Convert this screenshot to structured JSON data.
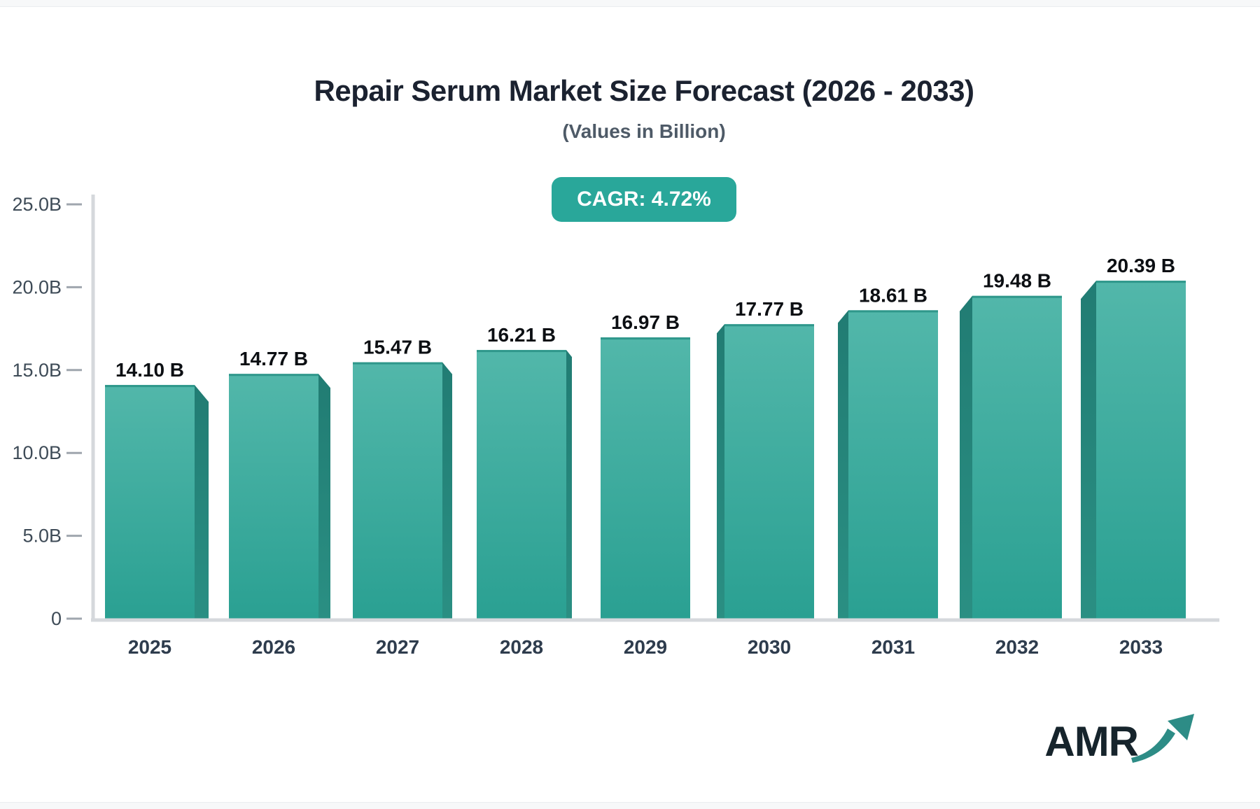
{
  "header": {
    "title": "Repair Serum Market Size Forecast (2026 - 2033)",
    "subtitle": "(Values in Billion)",
    "cagr_badge": "CAGR: 4.72%"
  },
  "chart_data": {
    "type": "bar",
    "title": "Repair Serum Market Size Forecast (2026 - 2033)",
    "subtitle": "(Values in Billion)",
    "unit": "Billion",
    "cagr_percent": 4.72,
    "categories": [
      "2025",
      "2026",
      "2027",
      "2028",
      "2029",
      "2030",
      "2031",
      "2032",
      "2033"
    ],
    "values": [
      14.1,
      14.77,
      15.47,
      16.21,
      16.97,
      17.77,
      18.61,
      19.48,
      20.39
    ],
    "value_labels": [
      "14.10 B",
      "14.77 B",
      "15.47 B",
      "16.21 B",
      "16.97 B",
      "17.77 B",
      "18.61 B",
      "19.48 B",
      "20.39 B"
    ],
    "ylim": [
      0,
      25
    ],
    "yticks": [
      {
        "value": 25,
        "label": "25.0B"
      },
      {
        "value": 20,
        "label": "20.0B"
      },
      {
        "value": 15,
        "label": "15.0B"
      },
      {
        "value": 10,
        "label": "10.0B"
      },
      {
        "value": 5,
        "label": "5.0B"
      },
      {
        "value": 0,
        "label": "0"
      }
    ],
    "grid": false,
    "legend_position": "none",
    "colors": {
      "bar_front_top": "#52b7aa",
      "bar_front_bottom": "#2aa092",
      "bar_side": "#217c73",
      "bar_side_bottom": "#2a8f83",
      "bar_top_edge": "#2f978b",
      "axis_line": "#d5d8dc",
      "tick_mark": "#9fa6ae",
      "tick_label": "#3e4b57",
      "value_label": "#0c0f13",
      "category_label": "#2e3c4d"
    }
  },
  "badge": {
    "background": "#29a79a",
    "text_color": "#ffffff"
  },
  "footer": {
    "logo_text": "AMR",
    "logo_color": "#16242c",
    "logo_arrow_color": "#2d8c86"
  }
}
